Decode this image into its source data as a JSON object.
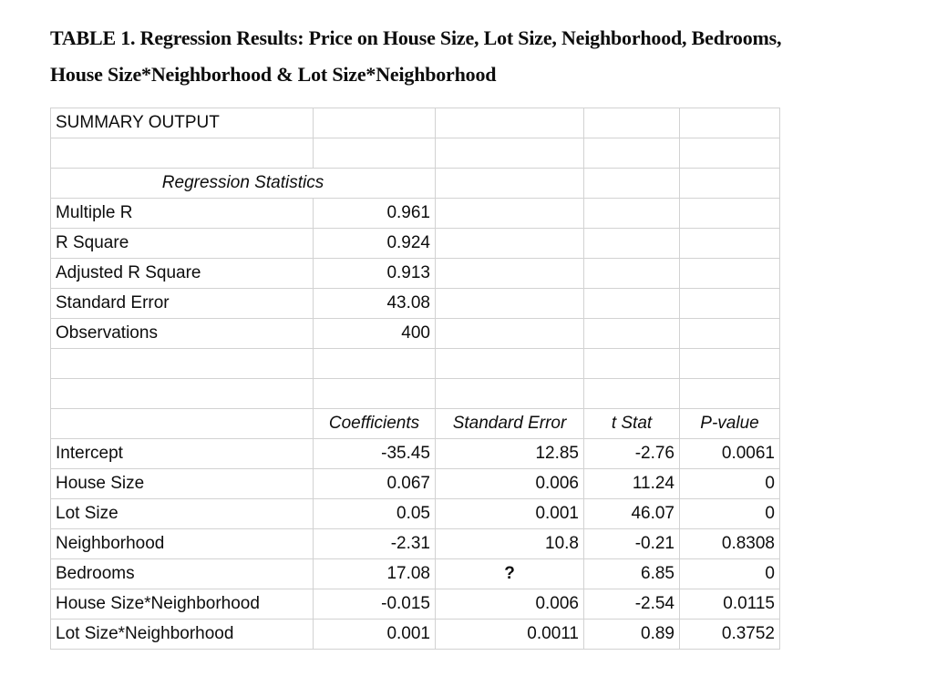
{
  "title": {
    "line1": "TABLE 1. Regression Results: Price on House Size, Lot Size, Neighborhood, Bedrooms,",
    "line2": "House Size*Neighborhood & Lot Size*Neighborhood"
  },
  "colors": {
    "background": "#ffffff",
    "text": "#0d0d0d",
    "gridline": "#d2d2d2",
    "rule_line": "#000000"
  },
  "summary": {
    "label": "SUMMARY OUTPUT",
    "section_header": "Regression Statistics",
    "stats": [
      {
        "label": "Multiple R",
        "value": "0.961"
      },
      {
        "label": "R Square",
        "value": "0.924"
      },
      {
        "label": "Adjusted R Square",
        "value": "0.913"
      },
      {
        "label": "Standard Error",
        "value": "43.08"
      },
      {
        "label": "Observations",
        "value": "400"
      }
    ]
  },
  "coefficients_table": {
    "headers": [
      "",
      "Coefficients",
      "Standard Error",
      "t Stat",
      "P-value"
    ],
    "rows": [
      {
        "label": "Intercept",
        "coefficient": "-35.45",
        "standard_error": "12.85",
        "t_stat": "-2.76",
        "p_value": "0.0061"
      },
      {
        "label": "House Size",
        "coefficient": "0.067",
        "standard_error": "0.006",
        "t_stat": "11.24",
        "p_value": "0"
      },
      {
        "label": "Lot Size",
        "coefficient": "0.05",
        "standard_error": "0.001",
        "t_stat": "46.07",
        "p_value": "0"
      },
      {
        "label": "Neighborhood",
        "coefficient": "-2.31",
        "standard_error": "10.8",
        "t_stat": "-0.21",
        "p_value": "0.8308"
      },
      {
        "label": "Bedrooms",
        "coefficient": "17.08",
        "standard_error": "?",
        "t_stat": "6.85",
        "p_value": "0",
        "se_bold": true
      },
      {
        "label": "House Size*Neighborhood",
        "coefficient": "-0.015",
        "standard_error": "0.006",
        "t_stat": "-2.54",
        "p_value": "0.0115"
      },
      {
        "label": "Lot Size*Neighborhood",
        "coefficient": "0.001",
        "standard_error": "0.0011",
        "t_stat": "0.89",
        "p_value": "0.3752"
      }
    ]
  }
}
